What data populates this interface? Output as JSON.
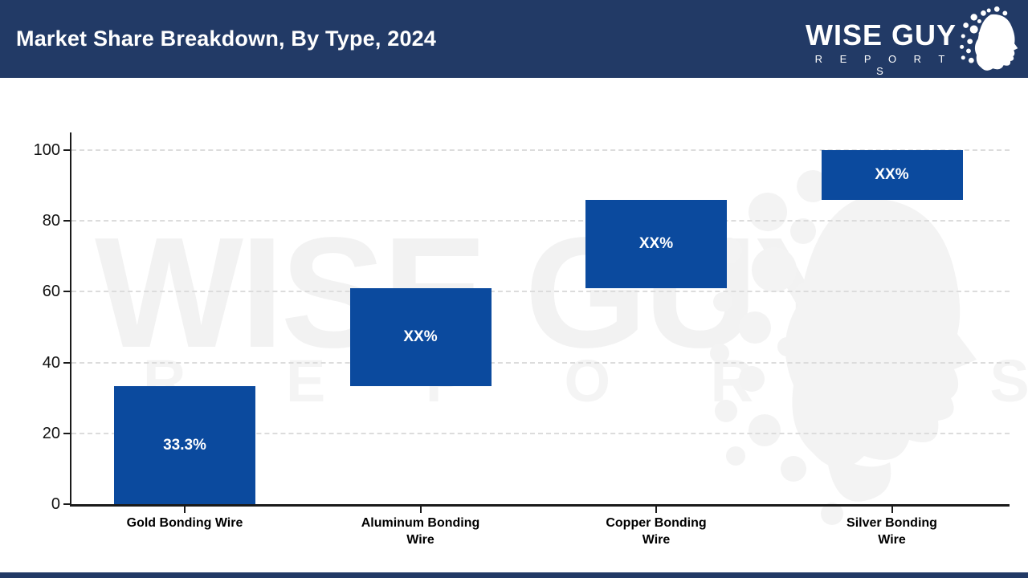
{
  "header": {
    "title": "Market Share Breakdown, By Type, 2024",
    "logo_main": "WISE GUY",
    "logo_sub": "R E P O R T S"
  },
  "watermark": {
    "big_text": "WISE GUY",
    "sub_text": "R E P O R T S"
  },
  "colors": {
    "header_bg": "#223A66",
    "bar_blue": "#0B4A9E",
    "gridline": "#DCDCDC",
    "axis": "#1A1A1A",
    "watermark": "#F2F2F2"
  },
  "chart_data": {
    "type": "bar",
    "subtype": "waterfall",
    "title": "Market Share Breakdown, By Type, 2024",
    "categories": [
      "Gold Bonding Wire",
      "Aluminum Bonding\nWire",
      "Copper Bonding\nWire",
      "Silver Bonding\nWire"
    ],
    "segments": [
      {
        "category": "Gold Bonding Wire",
        "start": 0,
        "end": 33.3,
        "label": "33.3%"
      },
      {
        "category": "Aluminum Bonding Wire",
        "start": 33.3,
        "end": 61.1,
        "label": "XX%"
      },
      {
        "category": "Copper Bonding Wire",
        "start": 61.1,
        "end": 86.0,
        "label": "XX%"
      },
      {
        "category": "Silver Bonding Wire",
        "start": 86.0,
        "end": 100.0,
        "label": "XX%"
      }
    ],
    "yticks": [
      0,
      20,
      40,
      60,
      80,
      100
    ],
    "ylim": [
      0,
      105
    ],
    "xlabel": "",
    "ylabel": "",
    "grid": "horizontal-dashed",
    "legend": "none",
    "bar_color": "#0B4A9E"
  }
}
